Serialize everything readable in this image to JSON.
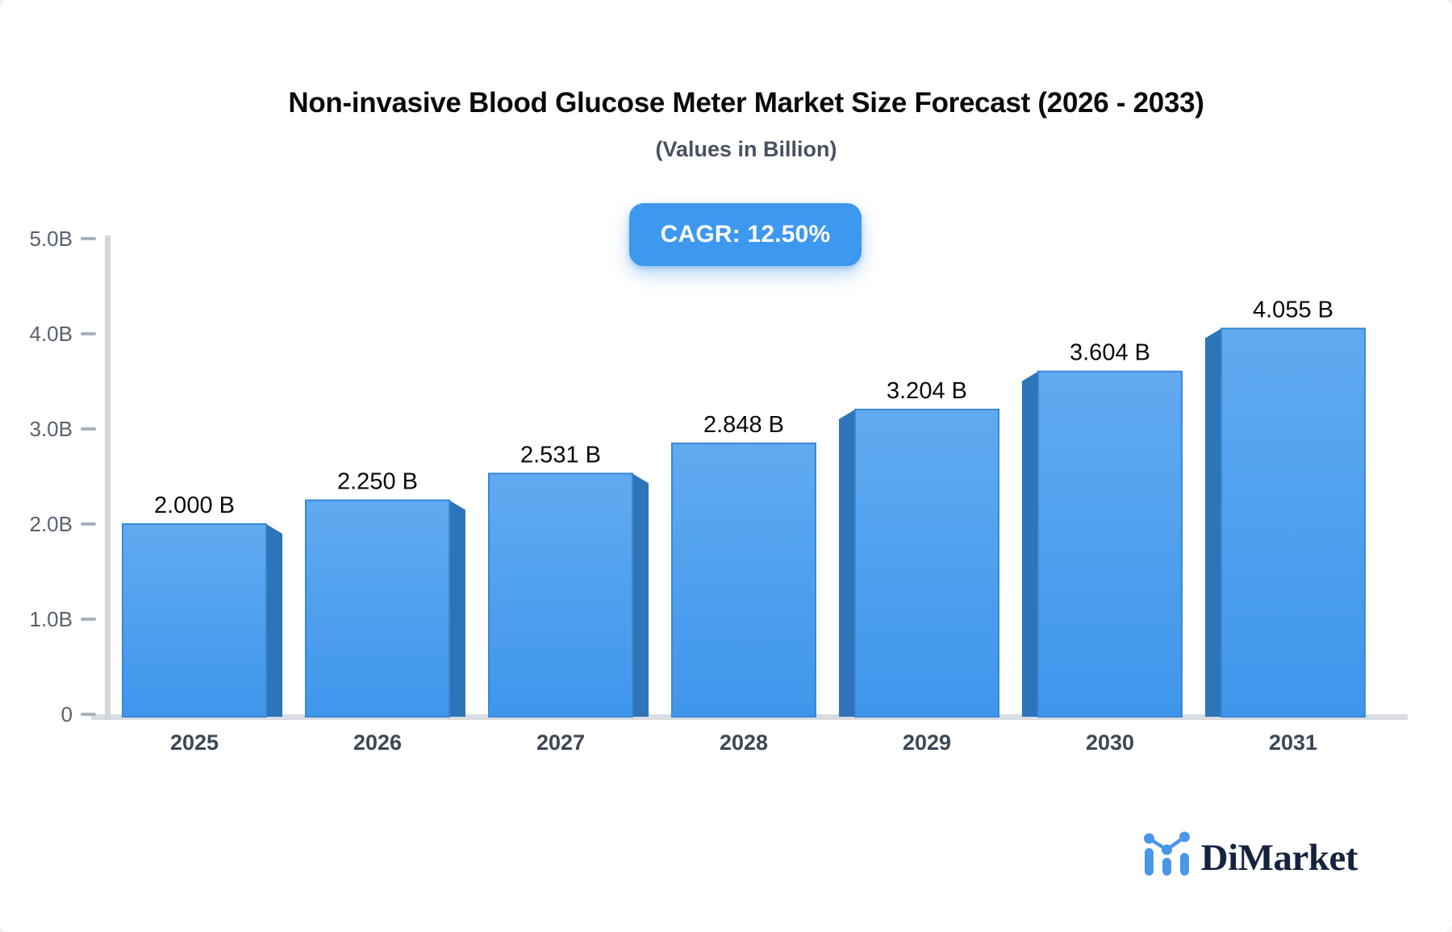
{
  "header": {
    "title": "Non-invasive Blood Glucose Meter Market Size Forecast (2026 - 2033)",
    "subtitle": "(Values in Billion)"
  },
  "badge": {
    "label": "CAGR: 12.50%"
  },
  "chart_data": {
    "type": "bar",
    "title": "Non-invasive Blood Glucose Meter Market Size Forecast (2026 - 2033)",
    "subtitle": "(Values in Billion)",
    "categories": [
      "2025",
      "2026",
      "2027",
      "2028",
      "2029",
      "2030",
      "2031"
    ],
    "values": [
      2.0,
      2.25,
      2.531,
      2.848,
      3.204,
      3.604,
      4.055
    ],
    "value_labels": [
      "2.000 B",
      "2.250 B",
      "2.531 B",
      "2.848 B",
      "3.204 B",
      "3.604 B",
      "4.055 B"
    ],
    "y_ticks": [
      {
        "value": 0,
        "label": "0"
      },
      {
        "value": 1,
        "label": "1.0B"
      },
      {
        "value": 2,
        "label": "2.0B"
      },
      {
        "value": 3,
        "label": "3.0B"
      },
      {
        "value": 4,
        "label": "4.0B"
      },
      {
        "value": 5,
        "label": "5.0B"
      }
    ],
    "ylim": [
      0,
      5
    ],
    "xlabel": "",
    "ylabel": "",
    "grid": false,
    "legend": false,
    "bar_style": "3d-extruded",
    "colors": {
      "bar_face_top": "#61aaf1",
      "bar_face_bottom": "#3e96ec",
      "bar_stroke": "#3a88d5",
      "bar_side": "#2e74b8",
      "axis_line": "#d3d8de",
      "baseline": "#d9dce1",
      "tick_dash": "#a9b1bb",
      "tick_label": "#58616f",
      "value_label": "#0a0a0a",
      "category_label": "#3d4856",
      "badge_bg": "#3d98f0"
    }
  },
  "logo": {
    "text": "DiMarket",
    "icon": "mini-bar-chart-icon",
    "icon_color": "#4a97ea",
    "text_color": "#16233f"
  }
}
